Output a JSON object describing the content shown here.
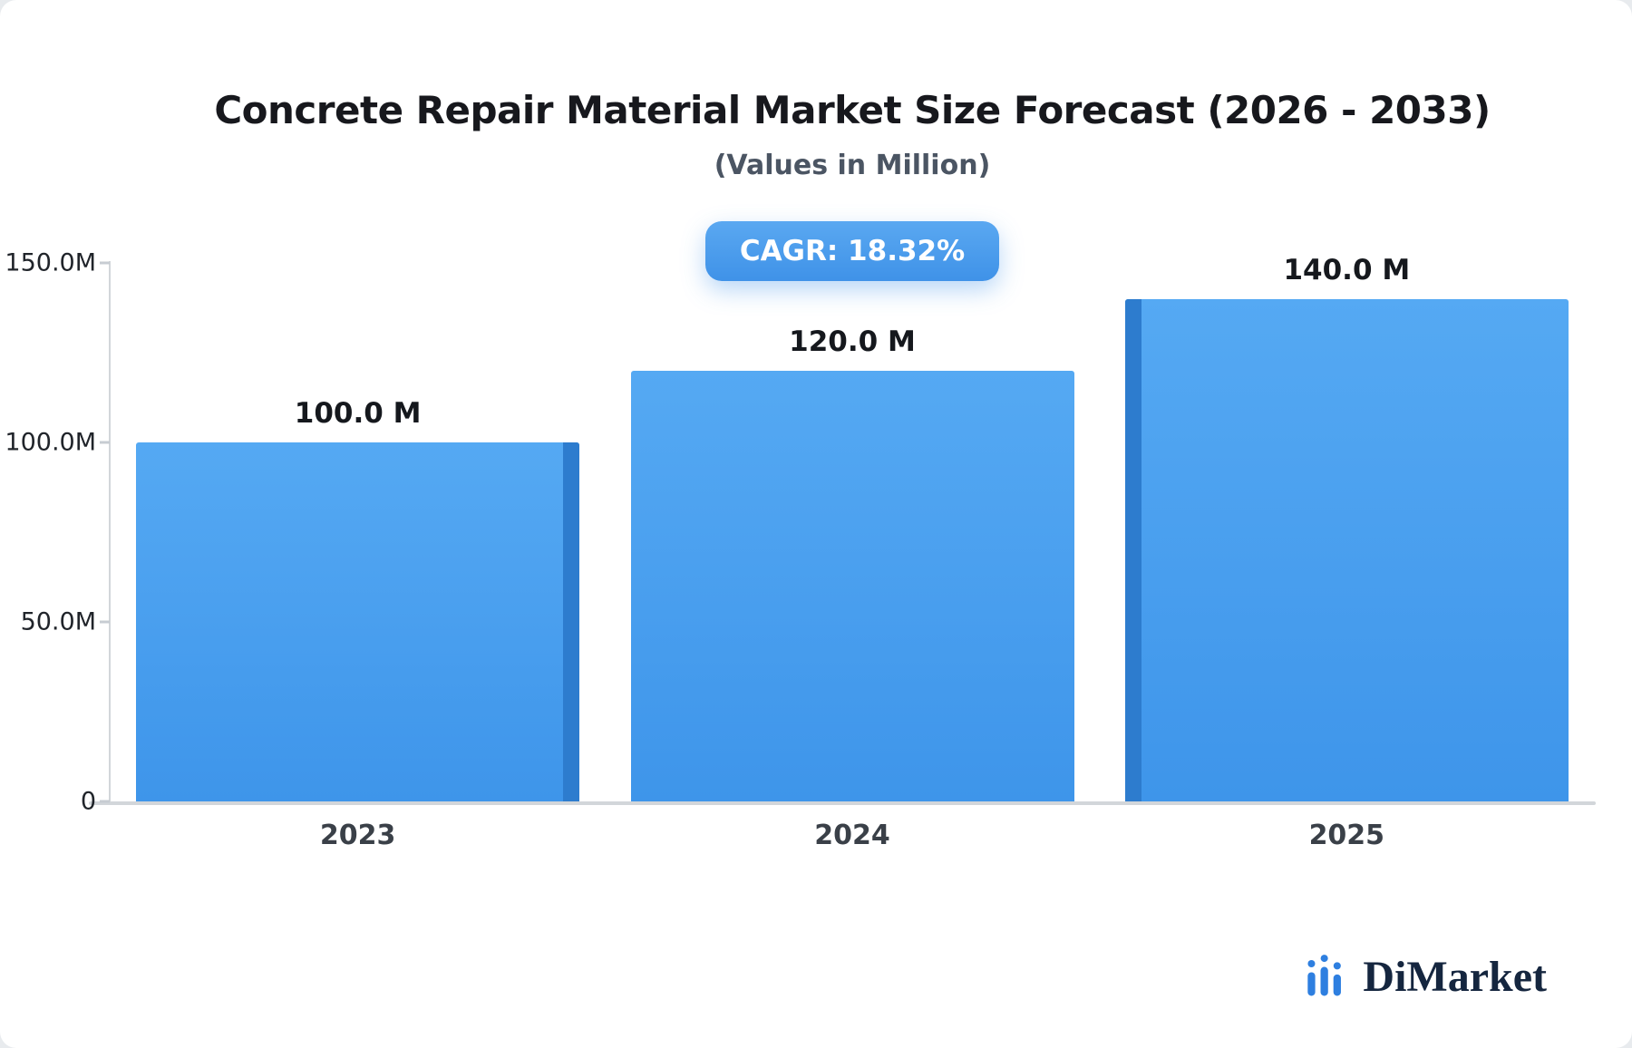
{
  "chart_data": {
    "type": "bar",
    "title": "Concrete Repair Material Market Size Forecast (2026 - 2033)",
    "subtitle": "(Values in Million)",
    "annotation": "CAGR: 18.32%",
    "categories": [
      "2023",
      "2024",
      "2025"
    ],
    "values": [
      100,
      120,
      140
    ],
    "value_labels": [
      "100.0 M",
      "120.0 M",
      "140.0 M"
    ],
    "ylim": [
      0,
      150
    ],
    "y_ticks": [
      {
        "value": 150,
        "label": "150.0M"
      },
      {
        "value": 100,
        "label": "100.0M"
      },
      {
        "value": 50,
        "label": "50.0M"
      },
      {
        "value": 0,
        "label": "0"
      }
    ],
    "xlabel": "",
    "ylabel": "",
    "grid": false,
    "legend": false,
    "bar_side_shading": [
      "right",
      "none",
      "left"
    ]
  },
  "branding": {
    "name": "DiMarket"
  },
  "colors": {
    "bar_top": "#55a9f3",
    "bar_bottom": "#3e95ea",
    "bar_side": "#2d7cce",
    "badge": "#3f92e8",
    "badge_light": "#5aa8f1",
    "axis": "#d2d6da",
    "logo_navy": "#15263f",
    "logo_blue": "#2e7fe0"
  }
}
